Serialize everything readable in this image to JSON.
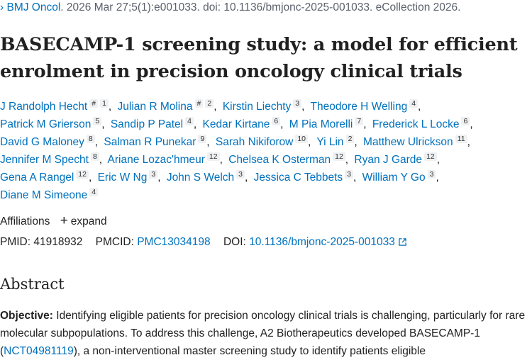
{
  "citation": {
    "arrow": "›",
    "journal": "BMJ Oncol",
    "rest": ". 2026 Mar 27;5(1):e001033. doi: 10.1136/bmjonc-2025-001033. eCollection 2026."
  },
  "title": "BASECAMP-1 screening study: a model for efficient enrolment in precision oncology clinical trials",
  "authors": [
    {
      "name": "J Randolph Hecht",
      "marks": [
        "#",
        "1"
      ]
    },
    {
      "name": "Julian R Molina",
      "marks": [
        "#",
        "2"
      ]
    },
    {
      "name": "Kirstin Liechty",
      "marks": [
        "3"
      ]
    },
    {
      "name": "Theodore H Welling",
      "marks": [
        "4"
      ]
    },
    {
      "name": "Patrick M Grierson",
      "marks": [
        "5"
      ]
    },
    {
      "name": "Sandip P Patel",
      "marks": [
        "4"
      ]
    },
    {
      "name": "Kedar Kirtane",
      "marks": [
        "6"
      ]
    },
    {
      "name": "M Pia Morelli",
      "marks": [
        "7"
      ]
    },
    {
      "name": "Frederick L Locke",
      "marks": [
        "6"
      ]
    },
    {
      "name": "David G Maloney",
      "marks": [
        "8"
      ]
    },
    {
      "name": "Salman R Punekar",
      "marks": [
        "9"
      ]
    },
    {
      "name": "Sarah Nikiforow",
      "marks": [
        "10"
      ]
    },
    {
      "name": "Yi Lin",
      "marks": [
        "2"
      ]
    },
    {
      "name": "Matthew Ulrickson",
      "marks": [
        "11"
      ]
    },
    {
      "name": "Jennifer M Specht",
      "marks": [
        "8"
      ]
    },
    {
      "name": "Ariane Lozac'hmeur",
      "marks": [
        "12"
      ]
    },
    {
      "name": "Chelsea K Osterman",
      "marks": [
        "12"
      ]
    },
    {
      "name": "Ryan J Garde",
      "marks": [
        "12"
      ]
    },
    {
      "name": "Gena A Rangel",
      "marks": [
        "12"
      ]
    },
    {
      "name": "Eric W Ng",
      "marks": [
        "3"
      ]
    },
    {
      "name": "John S Welch",
      "marks": [
        "3"
      ]
    },
    {
      "name": "Jessica C Tebbets",
      "marks": [
        "3"
      ]
    },
    {
      "name": "William Y Go",
      "marks": [
        "3"
      ]
    },
    {
      "name": "Diane M Simeone",
      "marks": [
        "4"
      ]
    }
  ],
  "affiliations": {
    "label": "Affiliations",
    "expand_icon": "plus-icon",
    "expand": "expand"
  },
  "ids": {
    "pmid_label": "PMID:",
    "pmid": "41918932",
    "pmcid_label": "PMCID:",
    "pmcid": "PMC13034198",
    "doi_label": "DOI:",
    "doi": "10.1136/bmjonc-2025-001033",
    "doi_icon": "external-link-icon"
  },
  "abstract": {
    "heading": "Abstract",
    "objective_label": "Objective:",
    "text_before": " Identifying eligible patients for precision oncology clinical trials is challenging, particularly for rare molecular subpopulations. To address this challenge, A2 Biotherapeutics developed BASECAMP-1 (",
    "trial_link": "NCT04981119",
    "text_after": "), a non-interventional master screening study to identify patients eligible"
  },
  "colors": {
    "link": "#0071bc",
    "text": "#212121",
    "muted": "#5b616b",
    "sup_bg": "#eef0f2"
  }
}
